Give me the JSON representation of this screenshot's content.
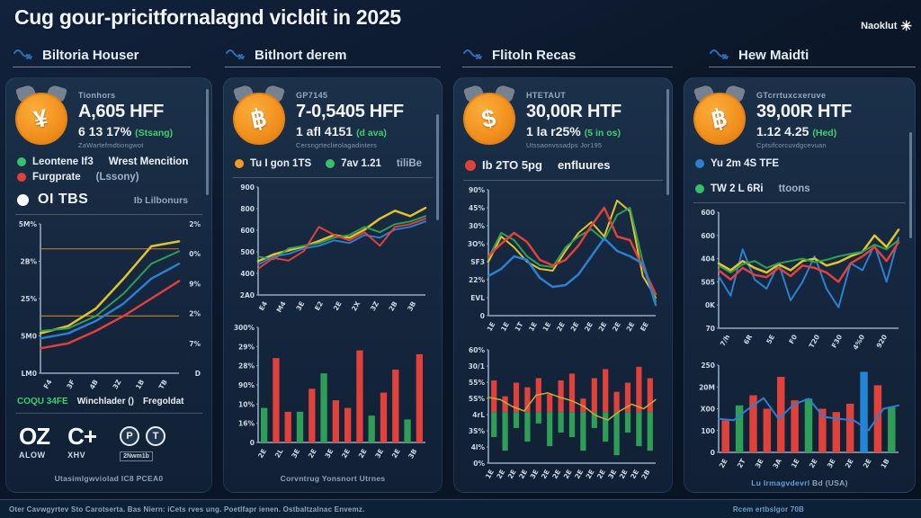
{
  "page": {
    "title": "Cug gour-pricitfornalagnd vicldit in 2025",
    "brand": "Naoklut",
    "footer": "Oter Cavwgyrtev Sto Carotserta. Bas Niern: iCets rves ung. Poetlfapr ienen. Ostbaltzalnac Envemz.",
    "footer_right": "Rcem ertbslgor 70B"
  },
  "colors": {
    "green": "#35c06a",
    "red": "#e0413a",
    "orange": "#f59a23",
    "yellow": "#e3c428",
    "blue": "#2e7fd0",
    "accent_text_green": "#3fcf6e"
  },
  "panels": [
    {
      "title": "Biltoria Houser",
      "icon": "wave-arrow-icon",
      "coin_symbol": "¥",
      "stat_label": "Tionhors",
      "value": "A,605 HFF",
      "sub_value": "6 13 17%",
      "sub_change": "(Stsang)",
      "fine_print": "ZaWartefmdtiongwot",
      "legend": [
        {
          "color": "#35c06a",
          "label": "Leontene If3",
          "extra": "Wrest Mencition"
        },
        {
          "color": "#e0413a",
          "label": "Furgprate",
          "extra": "(Lssony)"
        }
      ],
      "section_bullet": "OI TBS",
      "section_note": "Ib Lilbonurs",
      "chart_note_green": "COQU 34FE",
      "chart_note_mid": "Winchlader ()",
      "chart_note_right": "Fregoldat",
      "stats": [
        {
          "value": "OZ",
          "label": "ALOW"
        },
        {
          "value": "C+",
          "label": "XHV"
        }
      ],
      "badge_icons": [
        "P",
        "T"
      ],
      "badge_label": "2Nwm1b",
      "caption": "Utasimlgwviolad IC8 PCEA0"
    },
    {
      "title": "Bitlnort derem",
      "icon": "wave-arrow-icon",
      "coin_symbol": "฿",
      "stat_label": "GP7145",
      "value": "7-0,5405 HFF",
      "sub_value": "1 afl 4151",
      "sub_change": "(d ava)",
      "fine_print": "Cersngrteclieolagadinters",
      "legend": [
        {
          "color": "#f59a23",
          "label": "Tu I gon 1TS",
          "extra": ""
        },
        {
          "color": "#35c06a",
          "label": "7av 1.21",
          "extra": "tiliBe"
        }
      ],
      "caption": "Corvntrug Yonsnort Utrnes"
    },
    {
      "title": "Flitoln Recas",
      "icon": "wave-arrow-icon",
      "coin_symbol": "$",
      "stat_label": "HTETAUT",
      "value": "30,00R HTF",
      "sub_value": "1 la r25%",
      "sub_change": "(5 in os)",
      "fine_print": "Utssaonvssadps Jor195",
      "legend": [
        {
          "color": "#e0413a",
          "label": "Ib 2TO 5pg",
          "extra": "enfluures"
        }
      ]
    },
    {
      "title": "Hew Maidti",
      "icon": "wave-arrow-icon",
      "coin_symbol": "฿",
      "stat_label": "GTcrrtuxcxeruve",
      "value": "39,00R HTF",
      "sub_value": "1.12 4.25",
      "sub_change": "(Hed)",
      "fine_print": "Cptsifcorcuvdgcevuan",
      "legend": [
        {
          "color": "#2e7fd0",
          "label": "Yu 2m 4S TFE",
          "extra": ""
        },
        {
          "color": "#35c06a",
          "label": "TW 2 L 6Ri",
          "extra": "ttoons"
        }
      ],
      "caption_blue": "Lu Irmagvdevrl",
      "caption_rest": " Bd (USA)"
    }
  ],
  "chart_data": [
    {
      "name": "panel1-price-trend",
      "type": "line",
      "ymin": 0,
      "ymax": 6,
      "ylabels": [
        "5M%",
        "2B%",
        "25%",
        "5M0",
        "LM0"
      ],
      "ylabels_right": [
        "2%",
        "0%",
        "9%",
        "2%",
        "7%",
        "D"
      ],
      "xlabels": [
        "F4",
        "3F",
        "4B",
        "3Z",
        "1B",
        "TB"
      ],
      "gridlines": [
        {
          "y": 5.0,
          "color": "#b8792b"
        },
        {
          "y": 2.3,
          "color": "#b8792b"
        }
      ],
      "layers": [
        {
          "kind": "line",
          "name": "yellow-series",
          "color": "#e3c428",
          "width": 2.5,
          "values": [
            1.6,
            1.9,
            2.6,
            3.8,
            5.1,
            5.3
          ]
        },
        {
          "kind": "line",
          "name": "green-series",
          "color": "#2f9e57",
          "width": 2,
          "values": [
            1.7,
            1.8,
            2.3,
            3.2,
            4.4,
            4.9
          ]
        },
        {
          "kind": "line",
          "name": "blue-series",
          "color": "#2e7fd0",
          "width": 2.5,
          "values": [
            1.4,
            1.6,
            2.1,
            2.8,
            3.8,
            4.4
          ]
        },
        {
          "kind": "line",
          "name": "red-series",
          "color": "#e0413a",
          "width": 2.5,
          "values": [
            1.0,
            1.2,
            1.7,
            2.3,
            3.0,
            3.7
          ]
        }
      ]
    },
    {
      "name": "panel2-price-trend",
      "type": "line",
      "ymin": 200,
      "ymax": 1000,
      "ylabels": [
        "900",
        "800",
        "600",
        "500",
        "400",
        "2A0"
      ],
      "xlabels": [
        "E4",
        "M4",
        "3E",
        "E2",
        "2E",
        "2X",
        "3Z",
        "2B",
        "3B"
      ],
      "layers": [
        {
          "kind": "line",
          "name": "yellow-series",
          "color": "#e3c428",
          "width": 2.5,
          "values": [
            450,
            500,
            530,
            560,
            600,
            645,
            625,
            685,
            765,
            825,
            785,
            845
          ]
        },
        {
          "kind": "line",
          "name": "green-series",
          "color": "#2f9e57",
          "width": 2,
          "values": [
            485,
            465,
            545,
            565,
            585,
            625,
            645,
            705,
            665,
            725,
            745,
            785
          ]
        },
        {
          "kind": "line",
          "name": "blue-series",
          "color": "#2e7fd0",
          "width": 2,
          "values": [
            425,
            485,
            505,
            545,
            565,
            605,
            585,
            645,
            625,
            685,
            705,
            745
          ]
        },
        {
          "kind": "line",
          "name": "red-series",
          "color": "#e0413a",
          "width": 2,
          "values": [
            395,
            475,
            455,
            525,
            705,
            645,
            605,
            665,
            565,
            705,
            725,
            765
          ]
        }
      ]
    },
    {
      "name": "panel2-volume-bars",
      "type": "bar",
      "ymin": 0,
      "ymax": 30,
      "ylabels": [
        "300%",
        "29%",
        "28%",
        "90%",
        "10%",
        "16%",
        "0"
      ],
      "xlabels": [
        "2E",
        "2L",
        "3E",
        "2E",
        "3E",
        "2E",
        "2E",
        "3E",
        "2E",
        "3B"
      ],
      "layers": [
        {
          "kind": "bars",
          "name": "volume-bars",
          "values": [
            9,
            22,
            8,
            8,
            14,
            18,
            11,
            9,
            24,
            7,
            13,
            19,
            6,
            23
          ],
          "colors": [
            "#2f9e57",
            "#e0413a",
            "#e0413a",
            "#2f9e57",
            "#e0413a",
            "#2f9e57",
            "#e0413a",
            "#e0413a",
            "#e0413a",
            "#2f9e57",
            "#e0413a",
            "#e0413a",
            "#2f9e57",
            "#e0413a"
          ]
        }
      ]
    },
    {
      "name": "panel3-wave-trend",
      "type": "line",
      "ymin": 0,
      "ymax": 70,
      "ylabels": [
        "90%",
        "45%",
        "30%",
        "3O%",
        "SF3",
        "22%",
        "EVL",
        "0"
      ],
      "xlabels": [
        "1E",
        "1E",
        "1T",
        "1E",
        "1E",
        "2E",
        "2E",
        "2E",
        "2E",
        "2E",
        "2E",
        "EE"
      ],
      "layers": [
        {
          "kind": "line",
          "name": "yellow-series",
          "color": "#e3c428",
          "width": 2,
          "values": [
            30,
            44,
            38,
            30,
            26,
            25,
            36,
            46,
            52,
            44,
            64,
            58,
            22,
            10
          ]
        },
        {
          "kind": "line",
          "name": "green-series",
          "color": "#2f9e57",
          "width": 2,
          "values": [
            32,
            46,
            42,
            33,
            28,
            27,
            38,
            44,
            48,
            42,
            56,
            60,
            30,
            8
          ]
        },
        {
          "kind": "line",
          "name": "red-series",
          "color": "#e0413a",
          "width": 2.5,
          "values": [
            33,
            40,
            46,
            41,
            31,
            28,
            31,
            39,
            50,
            60,
            44,
            42,
            27,
            12
          ]
        },
        {
          "kind": "line",
          "name": "blue-series",
          "color": "#2e7fd0",
          "width": 2.5,
          "values": [
            22,
            26,
            33,
            31,
            21,
            16,
            17,
            23,
            33,
            43,
            36,
            33,
            29,
            6
          ]
        }
      ]
    },
    {
      "name": "panel3-candles",
      "type": "candle",
      "ymin": 0,
      "ymax": 100,
      "ylabels": [
        "60%",
        "30/1",
        "55%",
        "5S%",
        "4rL",
        "3S%",
        "4l%",
        "0%"
      ],
      "xlabels": [
        "1E",
        "2E",
        "2E",
        "2E",
        "3E",
        "2E",
        "2E",
        "2E",
        "2E",
        "2E",
        "2E",
        "3E",
        "2E",
        "2E",
        "2B"
      ],
      "layers": [
        {
          "kind": "candles",
          "name": "up-down-bars",
          "baseline": 45,
          "up_color": "#e0413a",
          "down_color": "#2f9e57",
          "top": [
            73,
            59,
            71,
            67,
            75,
            61,
            73,
            79,
            57,
            75,
            83,
            63,
            71,
            85,
            75
          ],
          "bottom": [
            23,
            11,
            31,
            19,
            35,
            15,
            27,
            23,
            11,
            31,
            19,
            7,
            27,
            15,
            11
          ]
        },
        {
          "kind": "line",
          "name": "yellow-overlay",
          "color": "#c9a93c",
          "width": 1.5,
          "values": [
            58,
            56,
            50,
            46,
            60,
            62,
            58,
            55,
            50,
            42,
            38,
            46,
            52,
            48,
            56
          ]
        }
      ]
    },
    {
      "name": "panel4-volatility-trend",
      "type": "line",
      "ymin": 0,
      "ymax": 100,
      "ylabels": [
        "600",
        "600",
        "404",
        "505",
        "0K",
        "70"
      ],
      "xlabels": [
        "7/h",
        "6R",
        "5E",
        "F0",
        "T20",
        "F30",
        "4%0",
        "920"
      ],
      "layers": [
        {
          "kind": "line",
          "name": "blue-series",
          "color": "#2e7fd0",
          "width": 2,
          "values": [
            45,
            28,
            68,
            42,
            34,
            56,
            24,
            40,
            62,
            34,
            18,
            56,
            50,
            72,
            40,
            78
          ]
        },
        {
          "kind": "line",
          "name": "yellow-series",
          "color": "#e3c428",
          "width": 2.5,
          "values": [
            56,
            50,
            58,
            52,
            48,
            55,
            50,
            58,
            60,
            54,
            57,
            62,
            66,
            80,
            70,
            85
          ]
        },
        {
          "kind": "line",
          "name": "green-series",
          "color": "#2f9e57",
          "width": 2,
          "values": [
            54,
            48,
            55,
            58,
            52,
            56,
            58,
            60,
            57,
            59,
            62,
            64,
            66,
            72,
            68,
            76
          ]
        },
        {
          "kind": "line",
          "name": "red-series",
          "color": "#e0413a",
          "width": 2.5,
          "values": [
            50,
            42,
            52,
            46,
            44,
            52,
            45,
            54,
            52,
            48,
            40,
            56,
            62,
            70,
            58,
            74
          ]
        }
      ]
    },
    {
      "name": "panel4-bars-with-line",
      "type": "bar",
      "ymin": 0,
      "ymax": 260,
      "ylabels": [
        "250",
        "20M",
        "X00",
        "100",
        "0"
      ],
      "xlabels": [
        "2E",
        "2T",
        "3E",
        "3A",
        "1E",
        "2E",
        "3E",
        "2E",
        "2E",
        "1B"
      ],
      "layers": [
        {
          "kind": "bars",
          "name": "volume-bars",
          "values": [
            95,
            140,
            170,
            130,
            225,
            155,
            160,
            130,
            120,
            145,
            240,
            200,
            135
          ],
          "colors": [
            "#e0413a",
            "#2f9e57",
            "#e0413a",
            "#e0413a",
            "#e0413a",
            "#e0413a",
            "#2f9e57",
            "#e0413a",
            "#e0413a",
            "#e0413a",
            "#2186d6",
            "#e0413a",
            "#2f9e57"
          ]
        },
        {
          "kind": "line",
          "name": "blue-overlay",
          "color": "#2e7fd0",
          "width": 2,
          "values": [
            100,
            96,
            130,
            162,
            100,
            142,
            160,
            106,
            100,
            96,
            66,
            130,
            140
          ]
        }
      ]
    }
  ]
}
